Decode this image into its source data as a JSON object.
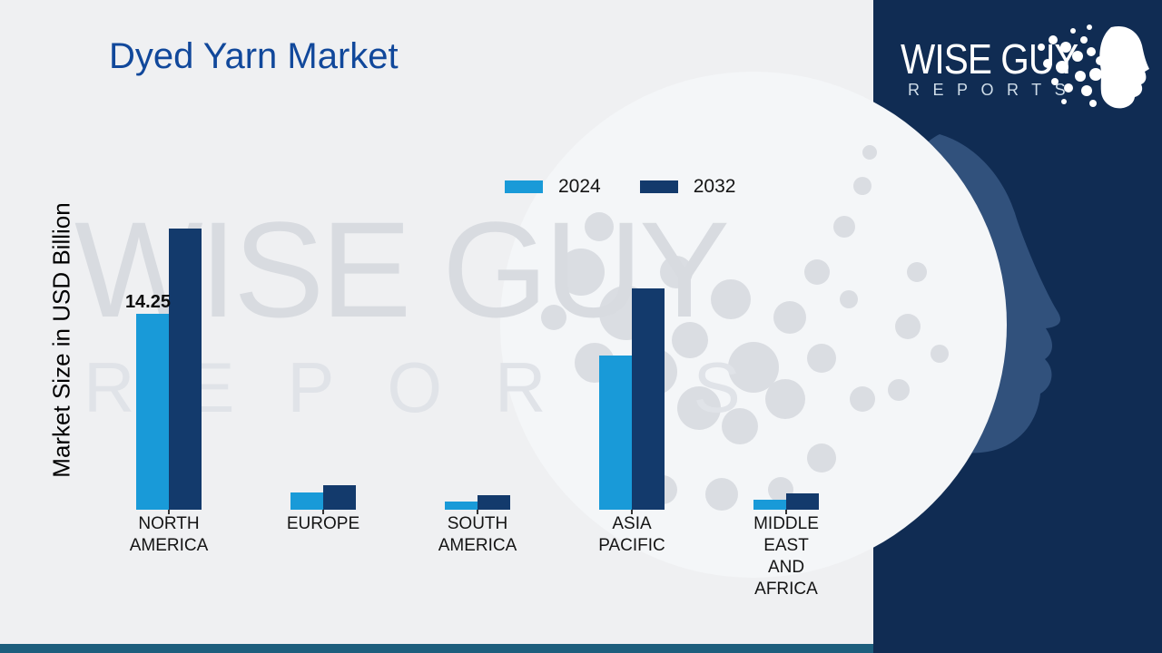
{
  "title": "Dyed Yarn Market",
  "y_axis_label": "Market Size in USD Billion",
  "watermark": {
    "line1": "WISE GUY",
    "line2": "REPORTS"
  },
  "logo": {
    "line1": "WISE GUY",
    "line2": "REPORTS"
  },
  "colors": {
    "series_2024": "#199ad8",
    "series_2032": "#133a6c",
    "side_panel": "#102c53",
    "face_silhouette": "#31517c",
    "light_circle": "#f4f6f8",
    "watermark_dots": "#dadde2",
    "bottom_strip": "#1d5e7d",
    "title_text": "#11489b",
    "background": "#eff0f2"
  },
  "chart_data": {
    "type": "bar",
    "title": "Dyed Yarn Market",
    "ylabel": "Market Size in USD Billion",
    "ylim": [
      0,
      21
    ],
    "grid": false,
    "legend_position": "top",
    "categories": [
      "NORTH AMERICA",
      "EUROPE",
      "SOUTH AMERICA",
      "ASIA PACIFIC",
      "MIDDLE EAST AND AFRICA"
    ],
    "series": [
      {
        "name": "2024",
        "color": "#199ad8",
        "values": [
          14.25,
          1.25,
          0.6,
          11.2,
          0.75
        ]
      },
      {
        "name": "2032",
        "color": "#133a6c",
        "values": [
          20.45,
          1.8,
          1.05,
          16.1,
          1.2
        ]
      }
    ],
    "annotations": [
      {
        "category": "NORTH AMERICA",
        "series": "2024",
        "text": "14.25"
      }
    ]
  }
}
